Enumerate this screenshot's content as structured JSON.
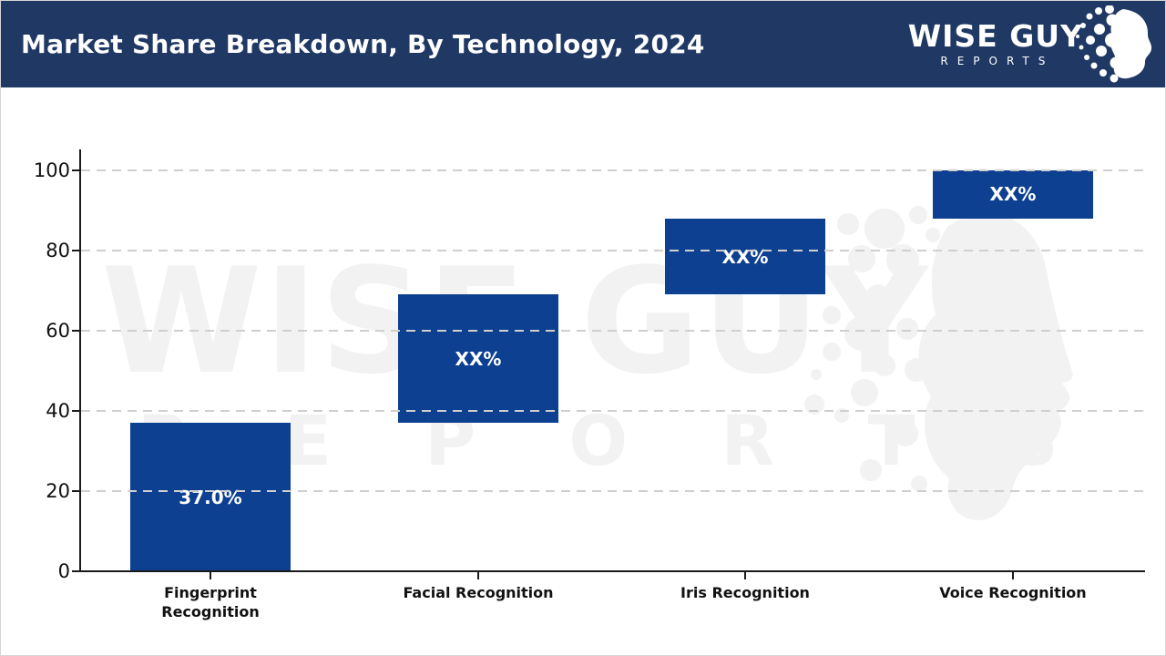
{
  "header": {
    "title": "Market Share Breakdown, By Technology, 2024",
    "logo": {
      "line1": "WISE GUY",
      "line2": "REPORTS"
    }
  },
  "watermark": {
    "line1": "WISE GUY",
    "line2": "REPORTS"
  },
  "colors": {
    "header_bg": "#1f3864",
    "bar": "#0d4091",
    "bar_label": "#ffffff",
    "gridline": "#cfcfcf",
    "axis": "#1a1a1a",
    "watermark": "#f2f2f2"
  },
  "chart_data": {
    "type": "bar",
    "subtype": "waterfall",
    "title": "Market Share Breakdown, By Technology, 2024",
    "categories": [
      "Fingerprint Recognition",
      "Facial Recognition",
      "Iris Recognition",
      "Voice Recognition"
    ],
    "category_lines": [
      [
        "Fingerprint",
        "Recognition"
      ],
      [
        "Facial Recognition"
      ],
      [
        "Iris Recognition"
      ],
      [
        "Voice Recognition"
      ]
    ],
    "segments": [
      {
        "category": "Fingerprint Recognition",
        "start": 0,
        "end": 37,
        "label": "37.0%"
      },
      {
        "category": "Facial Recognition",
        "start": 37,
        "end": 69,
        "label": "XX%"
      },
      {
        "category": "Iris Recognition",
        "start": 69,
        "end": 88,
        "label": "XX%"
      },
      {
        "category": "Voice Recognition",
        "start": 88,
        "end": 100,
        "label": "XX%"
      }
    ],
    "xlabel": "",
    "ylabel": "",
    "ylim": [
      0,
      100
    ],
    "yticks": [
      0,
      20,
      40,
      60,
      80,
      100
    ],
    "grid": "horizontal-dashed, drawn above bars",
    "legend": "none"
  }
}
